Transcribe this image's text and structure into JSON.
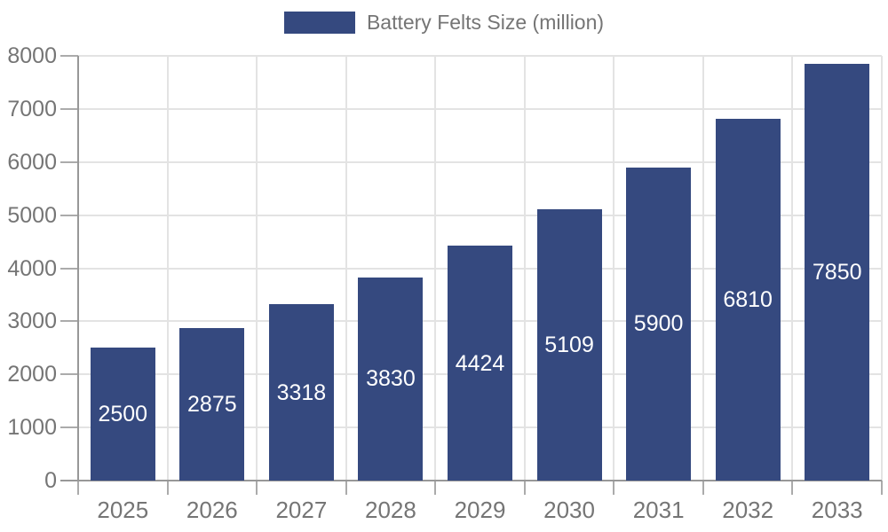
{
  "chart_data": {
    "type": "bar",
    "legend": "Battery Felts Size (million)",
    "categories": [
      "2025",
      "2026",
      "2027",
      "2028",
      "2029",
      "2030",
      "2031",
      "2032",
      "2033"
    ],
    "values": [
      2500,
      2875,
      3318,
      3830,
      4424,
      5109,
      5900,
      6810,
      7850
    ],
    "title": "",
    "xlabel": "",
    "ylabel": "",
    "ylim": [
      0,
      8000
    ],
    "yticks": [
      0,
      1000,
      2000,
      3000,
      4000,
      5000,
      6000,
      7000,
      8000
    ],
    "grid": true,
    "legend_position": "top-center",
    "value_labels": "inside-center",
    "colors": {
      "bar": "#35497F",
      "bar_value_text": "#ffffff",
      "axis_text": "#757575",
      "grid_line": "#e3e3e3",
      "axis_line": "#989898",
      "tick_line": "#ababab",
      "background": "#ffffff"
    }
  }
}
